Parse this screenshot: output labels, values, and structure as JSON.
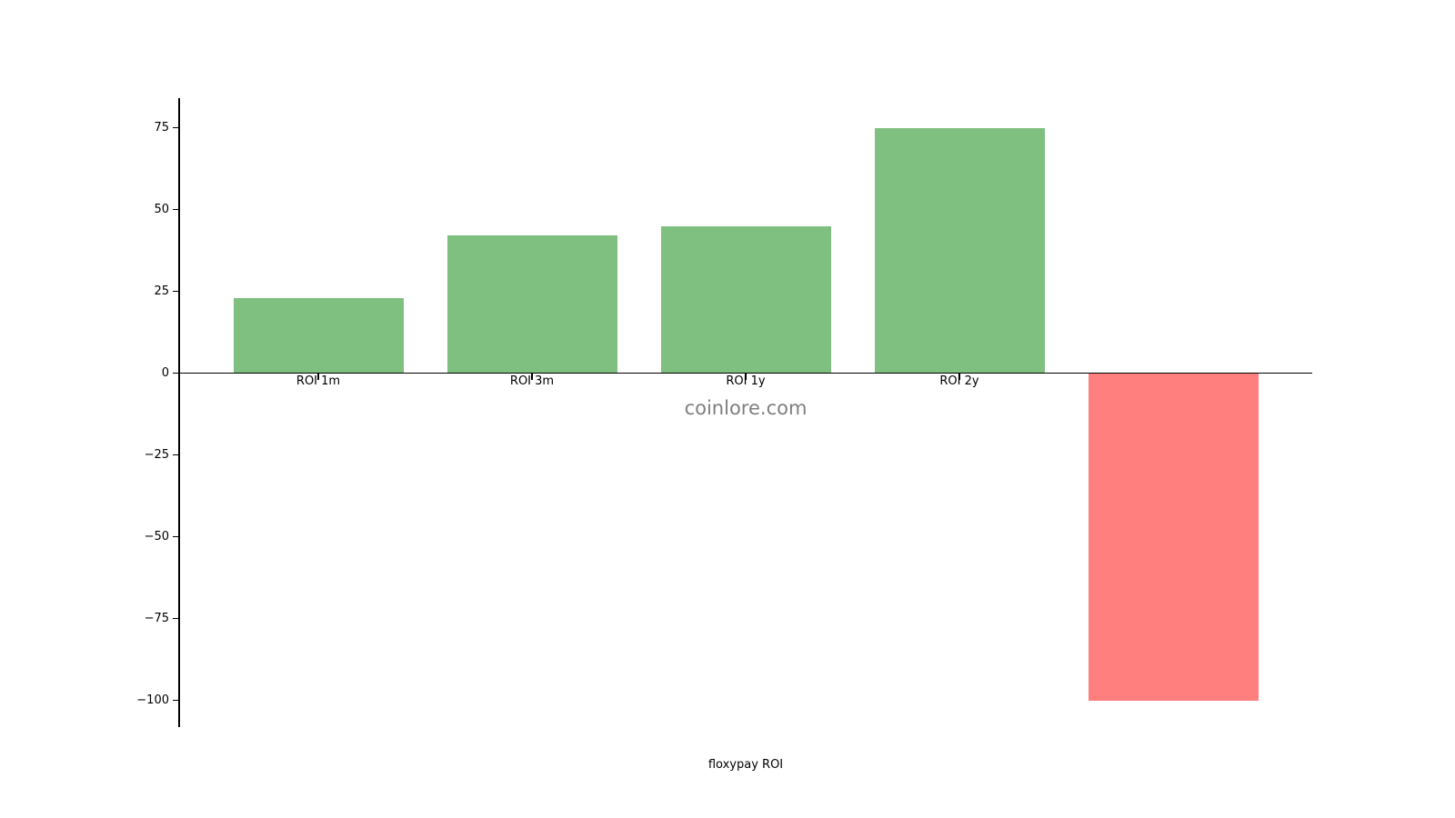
{
  "chart_data": {
    "type": "bar",
    "title": "",
    "xlabel": "floxypay ROI",
    "ylabel": "",
    "watermark": "coinlore.com",
    "categories": [
      "ROI 1m",
      "ROI 3m",
      "ROI 1y",
      "ROI 2y",
      ""
    ],
    "values": [
      23,
      42,
      45,
      75,
      -100
    ],
    "yticks": [
      75,
      50,
      25,
      0,
      -25,
      -50,
      -75,
      -100
    ],
    "ylim": [
      -108,
      84
    ],
    "grid": false,
    "legend_position": "none",
    "colors": {
      "positive": "#7fbf7f",
      "negative": "#ff7f7f",
      "axis": "#000000",
      "text": "#000000",
      "watermark": "#7f7f7f",
      "background": "#ffffff"
    }
  }
}
